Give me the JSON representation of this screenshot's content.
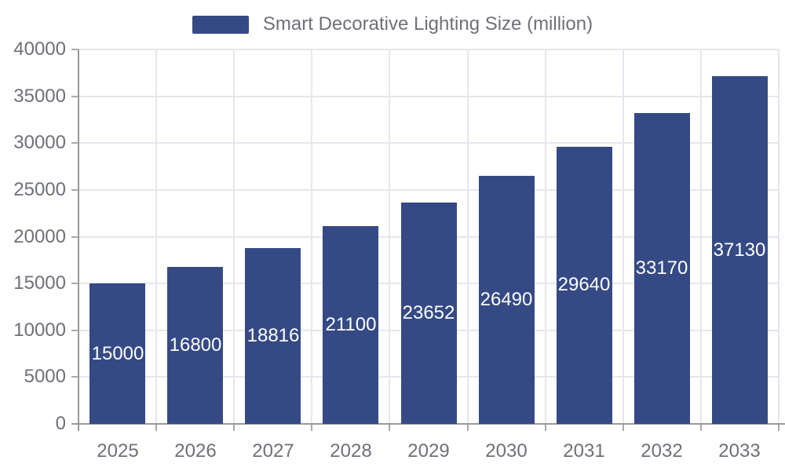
{
  "legend": {
    "label": "Smart Decorative Lighting Size (million)"
  },
  "colors": {
    "bar": "#354A85",
    "bar_label": "#FFFFFF",
    "axis_line": "#999999",
    "tick": "#AAAAAA",
    "grid_line": "#E4E7ED",
    "axis_label": "#6E7079",
    "legend_text": "#6E7079",
    "background": "#FFFFFF"
  },
  "chart_data": {
    "type": "bar",
    "title": "Smart Decorative Lighting Size (million)",
    "categories": [
      "2025",
      "2026",
      "2027",
      "2028",
      "2029",
      "2030",
      "2031",
      "2032",
      "2033"
    ],
    "series": [
      {
        "name": "Smart Decorative Lighting Size (million)",
        "values": [
          15000,
          16800,
          18816,
          21100,
          23652,
          26490,
          29640,
          33170,
          37130
        ]
      }
    ],
    "xlabel": "",
    "ylabel": "",
    "ylim": [
      0,
      40000
    ],
    "yticks": [
      0,
      5000,
      10000,
      15000,
      20000,
      25000,
      30000,
      35000,
      40000
    ],
    "grid": true,
    "grid_vertical_at_category_boundaries": true,
    "legend_position": "top-center",
    "bar_labels_shown": true,
    "bar_label_position": "inside-middle"
  }
}
